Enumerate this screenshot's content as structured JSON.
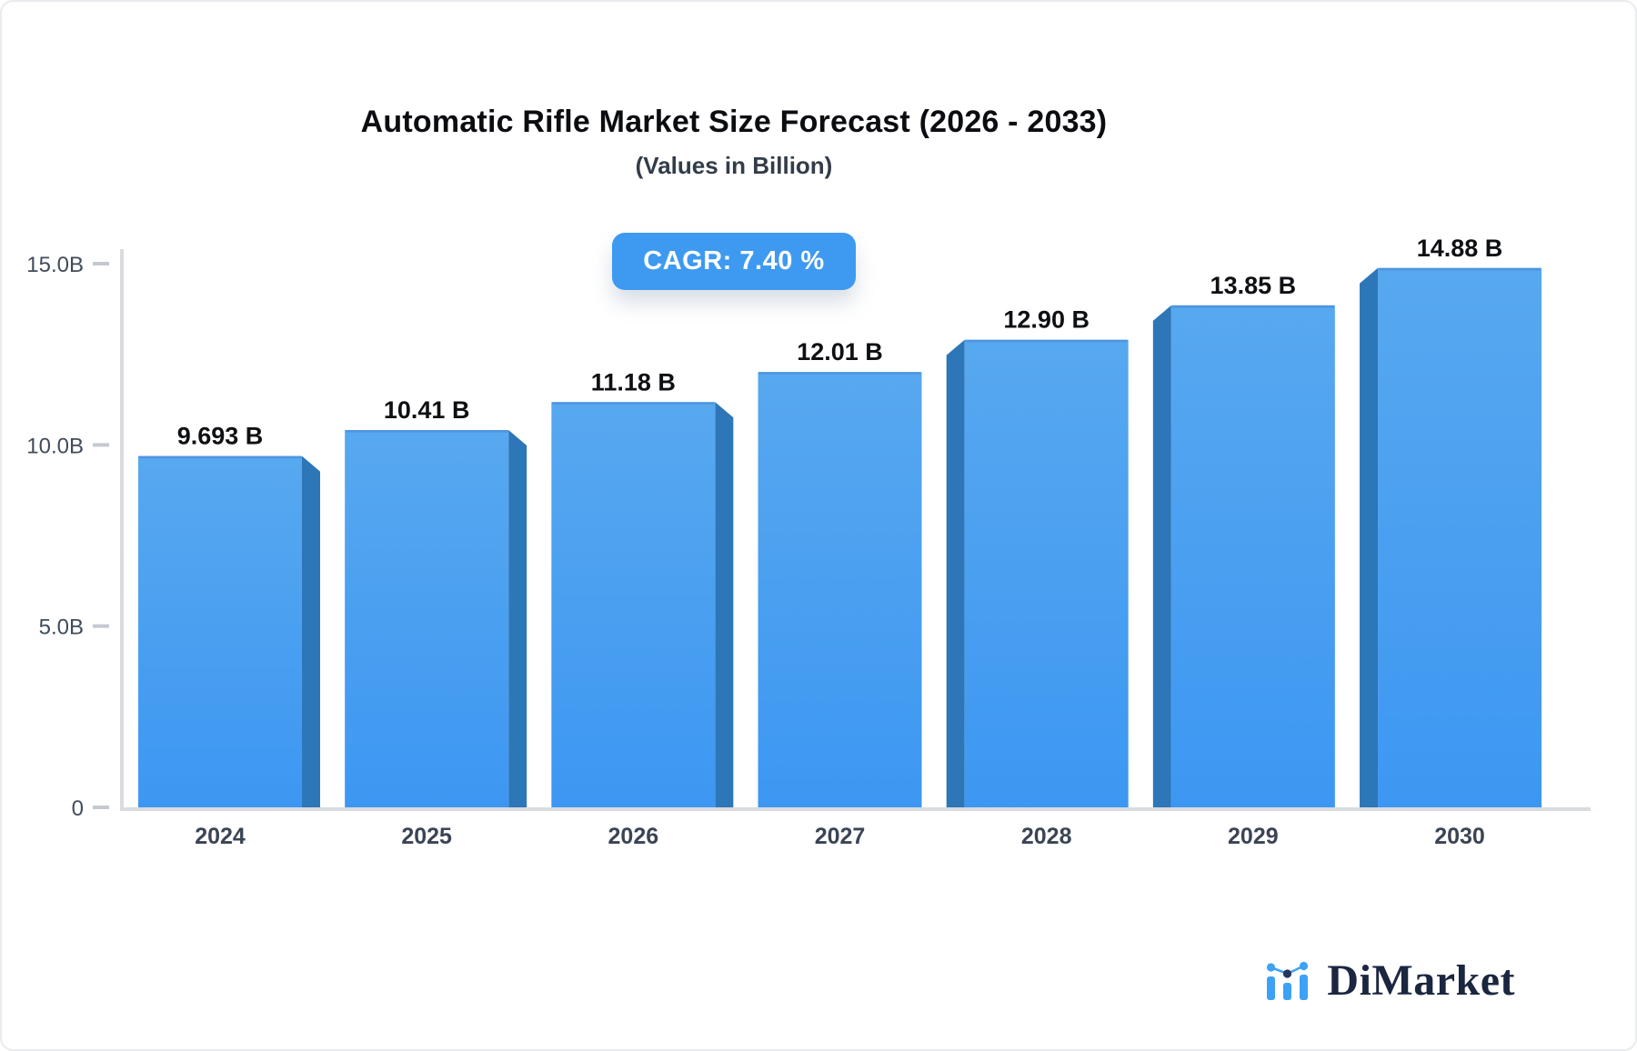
{
  "chart_data": {
    "type": "bar",
    "title": "Automatic Rifle Market Size Forecast (2026 - 2033)",
    "subtitle": "(Values in Billion)",
    "annotation": "CAGR: 7.40 %",
    "categories": [
      "2024",
      "2025",
      "2026",
      "2027",
      "2028",
      "2029",
      "2030"
    ],
    "values": [
      9.693,
      10.41,
      11.18,
      12.01,
      12.9,
      13.85,
      14.88
    ],
    "value_labels": [
      "9.693 B",
      "10.41 B",
      "11.18 B",
      "12.01 B",
      "12.90 B",
      "13.85 B",
      "14.88 B"
    ],
    "xlabel": "",
    "ylabel": "",
    "unit": "Billion",
    "ylim": [
      0,
      15
    ],
    "yticks": [
      {
        "value": 0,
        "label": "0"
      },
      {
        "value": 5,
        "label": "5.0B"
      },
      {
        "value": 10,
        "label": "10.0B"
      },
      {
        "value": 15,
        "label": "15.0B"
      }
    ],
    "grid": false,
    "legend": false,
    "colors": {
      "bar_top": "#57A8EF",
      "bar_bottom": "#3D97F2",
      "bar_top_edge": "#4E95DF",
      "bar_side": "#2D76B8",
      "badge_bg": "#3E9AF0",
      "axis_line": "#D8DBE0",
      "tick": "#C4C9D1",
      "ytick_text": "#414B5A",
      "xtick_text": "#3A4454",
      "value_text": "#0E1013"
    }
  },
  "brand": {
    "name": "DiMarket",
    "icon": "bar-chart-logo-icon",
    "icon_color": "#3DA2F5",
    "dot_color": "#24365C",
    "text_color": "#1B2740"
  }
}
